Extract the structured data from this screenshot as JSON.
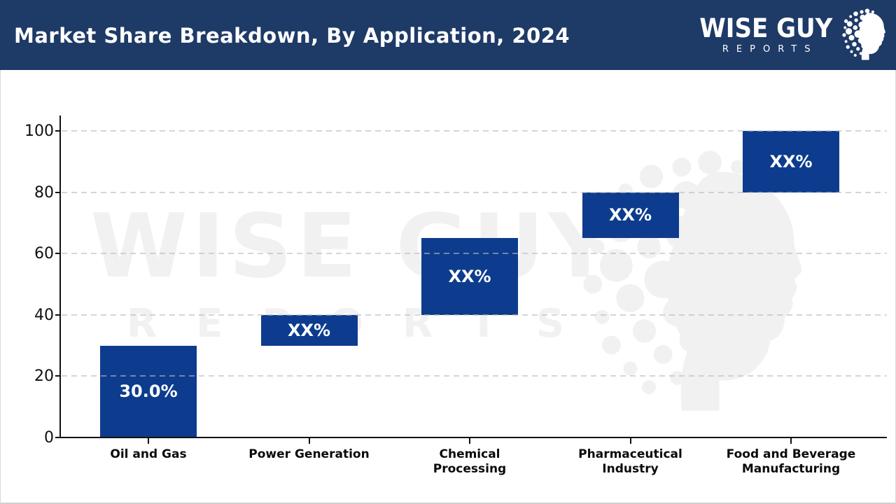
{
  "header": {
    "title": "Market Share Breakdown, By Application, 2024",
    "logo": {
      "line1": "WISE GUY",
      "line2": "REPORTS"
    }
  },
  "watermark": {
    "line1": "WISE GUY",
    "line2": "REPORTS"
  },
  "colors": {
    "header_bg": "#1e3a67",
    "bar": "#0d3c8e",
    "watermark": "#f1f1f1",
    "grid_dash": "rgba(185,185,185,0.6)",
    "axis": "#111111",
    "bar_label_text": "#ffffff"
  },
  "chart_data": {
    "type": "bar",
    "subtype": "waterfall-floating-bars",
    "title": "Market Share Breakdown, By Application, 2024",
    "categories": [
      "Oil and Gas",
      "Power Generation",
      "Chemical Processing",
      "Pharmaceutical Industry",
      "Food and Beverage Manufacturing"
    ],
    "category_display": [
      [
        "Oil and Gas"
      ],
      [
        "Power Generation"
      ],
      [
        "Chemical",
        "Processing"
      ],
      [
        "Pharmaceutical",
        "Industry"
      ],
      [
        "Food and Beverage",
        "Manufacturing"
      ]
    ],
    "series": [
      {
        "name": "Market Share",
        "starts": [
          0,
          30,
          40,
          65,
          80
        ],
        "ends": [
          30,
          40,
          65,
          80,
          100
        ]
      }
    ],
    "bar_labels": [
      "30.0%",
      "XX%",
      "XX%",
      "XX%",
      "XX%"
    ],
    "xlabel": "",
    "ylabel": "",
    "ylim": [
      0,
      100
    ],
    "yticks": [
      0,
      20,
      40,
      60,
      80,
      100
    ],
    "grid": "horizontal-dashed",
    "legend": "none"
  }
}
